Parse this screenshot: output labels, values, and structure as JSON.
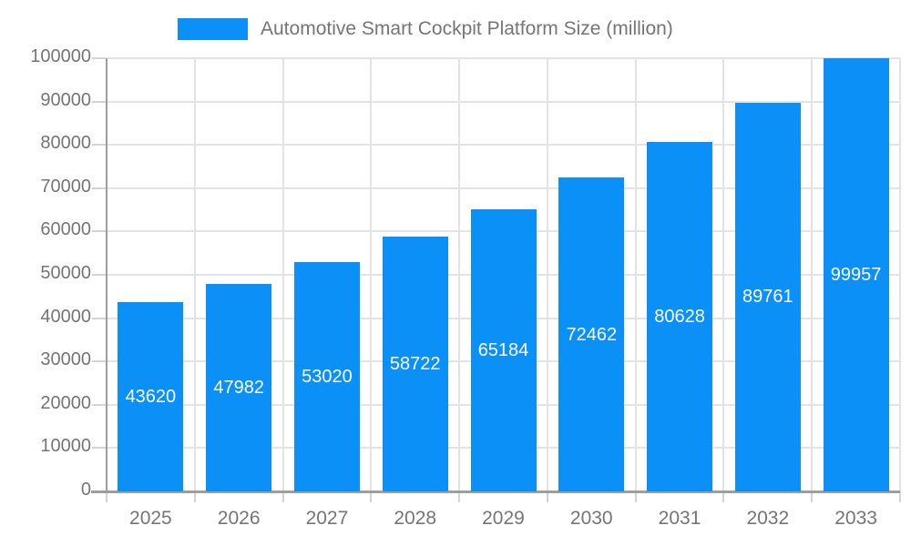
{
  "chart_data": {
    "type": "bar",
    "title": "Automotive Smart Cockpit Platform Size (million)",
    "categories": [
      "2025",
      "2026",
      "2027",
      "2028",
      "2029",
      "2030",
      "2031",
      "2032",
      "2033"
    ],
    "values": [
      43620,
      47982,
      53020,
      58722,
      65184,
      72462,
      80628,
      89761,
      99957
    ],
    "xlabel": "",
    "ylabel": "",
    "ylim": [
      0,
      100000
    ],
    "ytick_step": 10000,
    "ytick_labels": [
      "0",
      "10000",
      "20000",
      "30000",
      "40000",
      "50000",
      "60000",
      "70000",
      "80000",
      "90000",
      "100000"
    ],
    "grid": true,
    "value_label_position": "inside-middle",
    "legend_position": "top-center"
  },
  "colors": {
    "bar": "#0a90f7",
    "grid_line": "#e3e3e3",
    "axis_line": "#9e9e9e",
    "tick_line": "#d4d4d4",
    "label_text": "#757575",
    "value_text": "#ffffff",
    "background": "#ffffff"
  }
}
